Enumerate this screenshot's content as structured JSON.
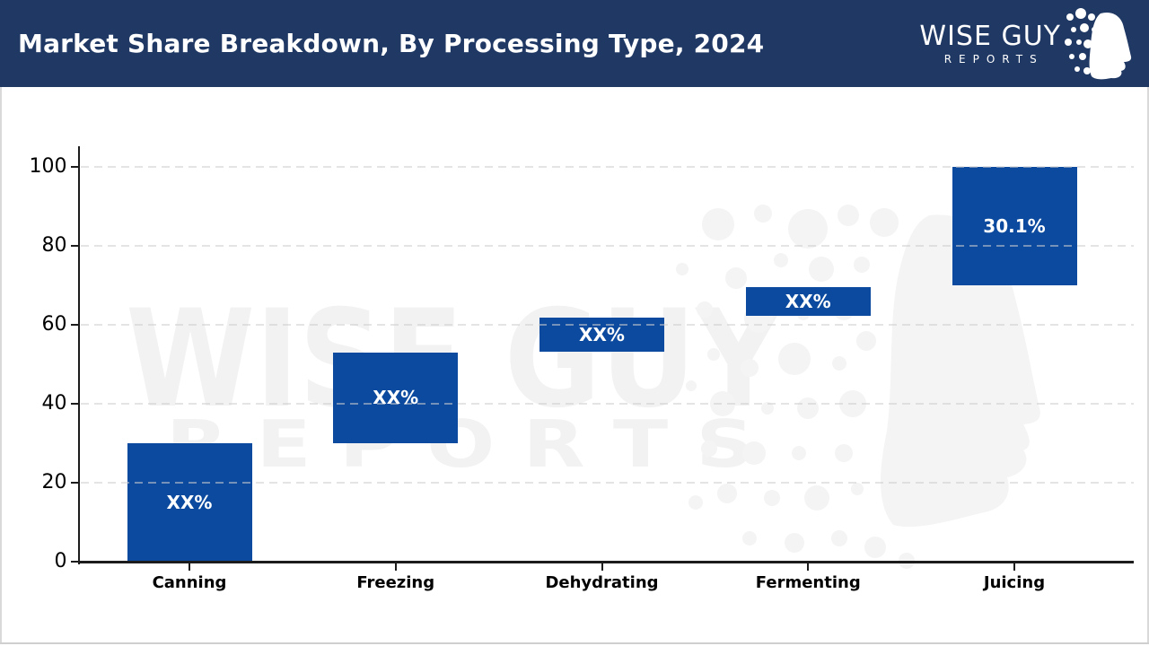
{
  "header": {
    "title": "Market Share Breakdown, By Processing Type, 2024",
    "bg_color": "#1f3864",
    "logo": {
      "line1": "WISE GUY",
      "line2": "REPORTS"
    }
  },
  "watermark": {
    "line1": "WISE GUY",
    "line2": "R E P O R T S"
  },
  "chart_data": {
    "type": "bar",
    "subtype": "waterfall",
    "title": "Market Share Breakdown, By Processing Type, 2024",
    "xlabel": "",
    "ylabel": "",
    "categories": [
      "Canning",
      "Freezing",
      "Dehydrating",
      "Fermenting",
      "Juicing"
    ],
    "segments": [
      {
        "category": "Canning",
        "start": 0,
        "end": 30,
        "label": "XX%"
      },
      {
        "category": "Freezing",
        "start": 30,
        "end": 53,
        "label": "XX%"
      },
      {
        "category": "Dehydrating",
        "start": 53.2,
        "end": 61.9,
        "label": "XX%"
      },
      {
        "category": "Fermenting",
        "start": 62.3,
        "end": 69.6,
        "label": "XX%"
      },
      {
        "category": "Juicing",
        "start": 69.9,
        "end": 100,
        "label": "30.1%"
      }
    ],
    "yticks": [
      0,
      20,
      40,
      60,
      80,
      100
    ],
    "ylim": [
      0,
      105.2
    ],
    "grid": true,
    "grid_style": "dashed",
    "legend": "none",
    "bar_color": "#0b4a9e",
    "grid_color": "#e0e0e0",
    "axis_color": "#1c1c1c",
    "label_color": "#ffffff"
  }
}
